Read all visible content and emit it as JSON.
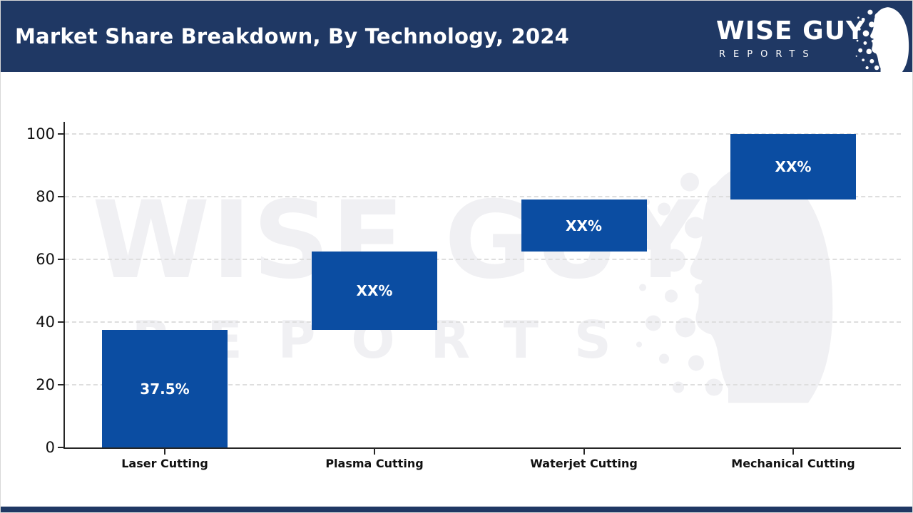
{
  "header": {
    "title": "Market Share Breakdown, By Technology, 2024",
    "logo": {
      "line1": "WISE GUY",
      "line2": "REPORTS"
    }
  },
  "watermark": {
    "line1": "WISE GUY",
    "line2": "REPORTS"
  },
  "chart_data": {
    "type": "bar",
    "variant": "waterfall",
    "title": "Market Share Breakdown, By Technology, 2024",
    "categories": [
      "Laser Cutting",
      "Plasma Cutting",
      "Waterjet Cutting",
      "Mechanical Cutting"
    ],
    "segments": [
      {
        "category": "Laser Cutting",
        "start": 0,
        "end": 37.5,
        "label": "37.5%"
      },
      {
        "category": "Plasma Cutting",
        "start": 37.5,
        "end": 62.5,
        "label": "XX%"
      },
      {
        "category": "Waterjet Cutting",
        "start": 62.5,
        "end": 79,
        "label": "XX%"
      },
      {
        "category": "Mechanical Cutting",
        "start": 79,
        "end": 100,
        "label": "XX%"
      }
    ],
    "ylim": [
      0,
      100
    ],
    "yticks": [
      0,
      20,
      40,
      60,
      80,
      100
    ],
    "xlabel": "",
    "ylabel": "",
    "grid": "horizontal-dashed",
    "legend": "none",
    "bar_color": "#0B4DA2",
    "bar_label_color": "#FFFFFF"
  },
  "colors": {
    "header_bg": "#1F3864",
    "bar": "#0B4DA2",
    "watermark": "#F0F0F3",
    "gridline": "#DEDEDE",
    "axis": "#262626"
  }
}
